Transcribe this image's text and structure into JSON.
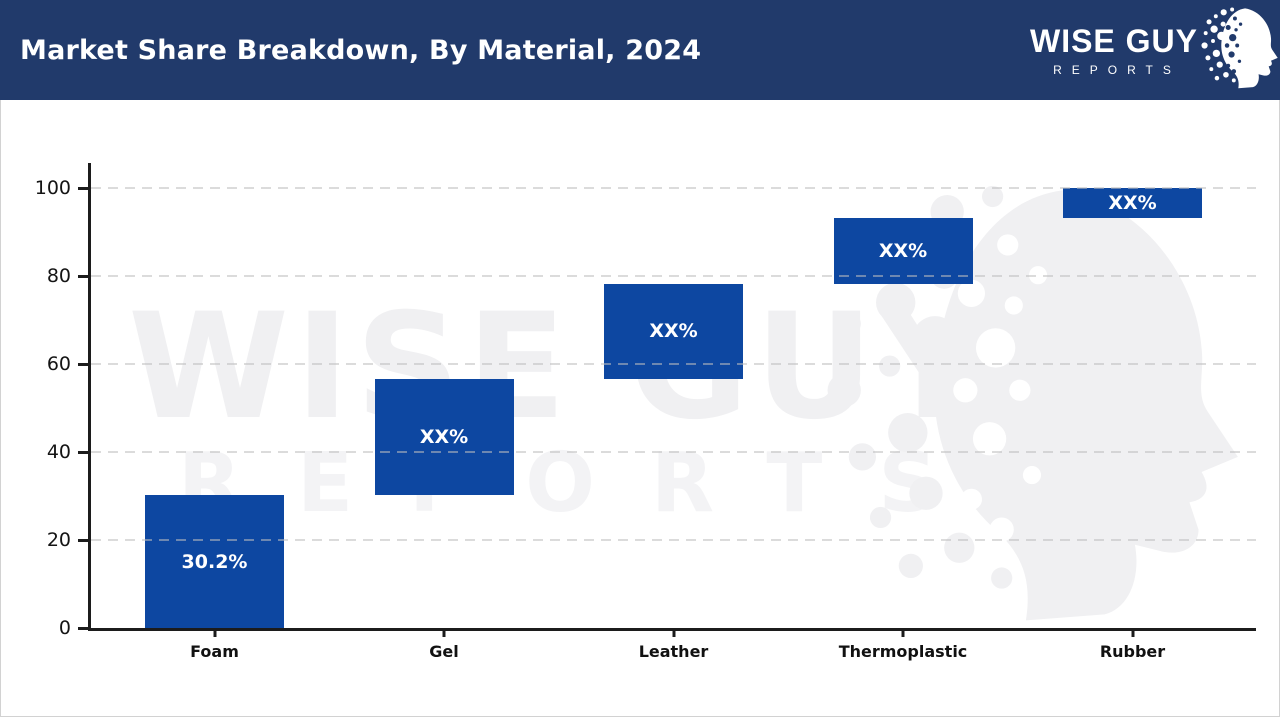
{
  "header": {
    "title": "Market Share Breakdown, By Material, 2024",
    "logo": {
      "line1": "WISE GUY",
      "line2": "REPORTS"
    }
  },
  "watermark": {
    "line1": "WISE GUY",
    "line2": "REPORTS"
  },
  "colors": {
    "header_bg": "#213a6b",
    "bar_blue": "#0d47a1",
    "grid_gray": "#d9d9d9",
    "watermark_gray": "#f0f0f2"
  },
  "chart_data": {
    "type": "bar",
    "subtype": "waterfall",
    "title": "Market Share Breakdown, By Material, 2024",
    "categories": [
      "Foam",
      "Gel",
      "Leather",
      "Thermoplastic",
      "Rubber"
    ],
    "bars": [
      {
        "label": "Foam",
        "start": 0,
        "end": 30.2,
        "value_label": "30.2%"
      },
      {
        "label": "Gel",
        "start": 30.2,
        "end": 56.7,
        "value_label": "XX%"
      },
      {
        "label": "Leather",
        "start": 56.7,
        "end": 78.2,
        "value_label": "XX%"
      },
      {
        "label": "Thermoplastic",
        "start": 78.2,
        "end": 93.2,
        "value_label": "XX%"
      },
      {
        "label": "Rubber",
        "start": 93.2,
        "end": 100,
        "value_label": "XX%"
      }
    ],
    "y_ticks": [
      0,
      20,
      40,
      60,
      80,
      100
    ],
    "ylim": [
      0,
      105.7
    ],
    "xlabel": "",
    "ylabel": "",
    "grid": "horizontal-dashed",
    "legend": "none",
    "bar_color": "#0d47a1"
  }
}
